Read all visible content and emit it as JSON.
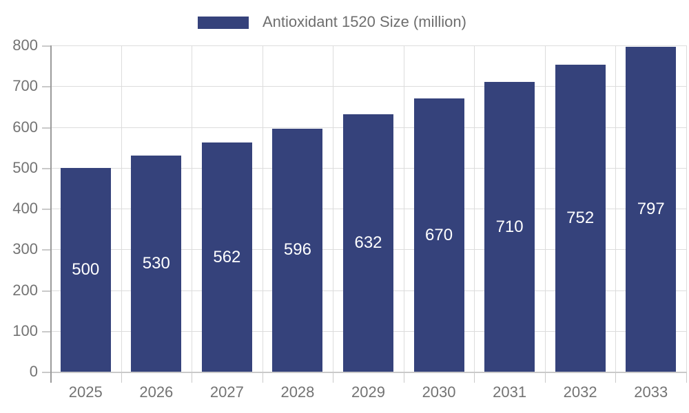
{
  "legend": {
    "label": "Antioxidant 1520 Size (million)"
  },
  "chart_data": {
    "type": "bar",
    "title": "",
    "xlabel": "",
    "ylabel": "",
    "categories": [
      "2025",
      "2026",
      "2027",
      "2028",
      "2029",
      "2030",
      "2031",
      "2032",
      "2033"
    ],
    "values": [
      500,
      530,
      562,
      596,
      632,
      670,
      710,
      752,
      797
    ],
    "value_labels": [
      "500",
      "530",
      "562",
      "596",
      "632",
      "670",
      "710",
      "752",
      "797"
    ],
    "series": [
      {
        "name": "Antioxidant 1520 Size (million)",
        "values": [
          500,
          530,
          562,
          596,
          632,
          670,
          710,
          752,
          797
        ]
      }
    ],
    "ylim": [
      0,
      800
    ],
    "ytick_step": 100,
    "y_tick_labels": [
      "0",
      "100",
      "200",
      "300",
      "400",
      "500",
      "600",
      "700",
      "800"
    ],
    "grid": true,
    "legend_position": "top-center",
    "value_labels_inside": "center"
  },
  "colors": {
    "bar": "#35427B",
    "value_label": "#FFFFFF",
    "axis_text": "#737373",
    "legend_text": "#6E6E6E",
    "gridline": "#DCDCDC",
    "axis_line": "#9A9A9A",
    "tick_line": "#C9C9C9",
    "background": "#FFFFFF"
  }
}
